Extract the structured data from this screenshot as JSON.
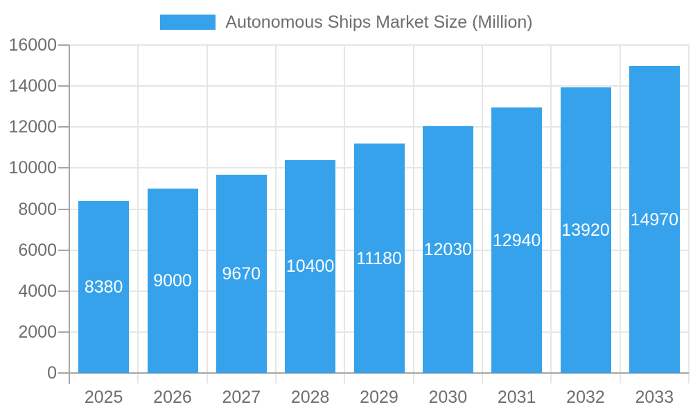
{
  "legend": {
    "label": "Autonomous Ships Market Size (Million)"
  },
  "colors": {
    "bar": "#36A2EB",
    "grid": "#E6E6E6",
    "axis": "#A6A6A6",
    "tick_text": "#6E6E6E",
    "bar_label": "#FFFFFF",
    "background": "#FFFFFF"
  },
  "chart_data": {
    "type": "bar",
    "title": "Autonomous Ships Market Size (Million)",
    "categories": [
      "2025",
      "2026",
      "2027",
      "2028",
      "2029",
      "2030",
      "2031",
      "2032",
      "2033"
    ],
    "series": [
      {
        "name": "Autonomous Ships Market Size (Million)",
        "color": "#36A2EB",
        "values": [
          8380,
          9000,
          9670,
          10400,
          11180,
          12030,
          12940,
          13920,
          14970
        ]
      }
    ],
    "data_labels": {
      "visible": true,
      "position": "inside-center",
      "color": "#FFFFFF"
    },
    "xlabel": "",
    "ylabel": "",
    "ylim": [
      0,
      16000
    ],
    "yticks": [
      0,
      2000,
      4000,
      6000,
      8000,
      10000,
      12000,
      14000,
      16000
    ],
    "grid": true,
    "legend_position": "top-center"
  }
}
